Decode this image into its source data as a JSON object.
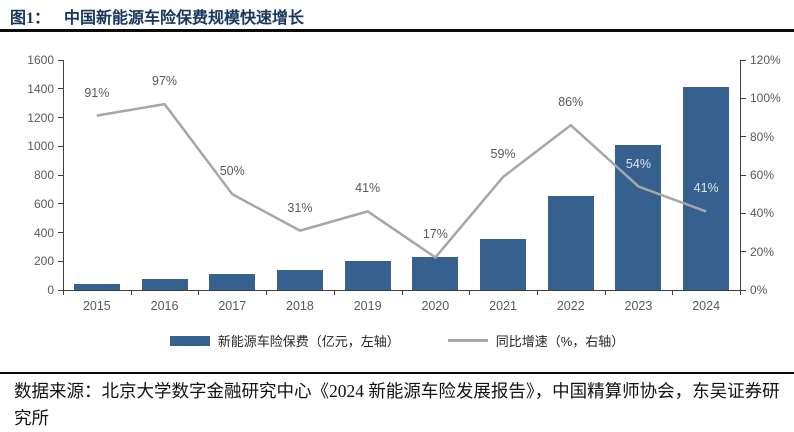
{
  "header": {
    "title_prefix": "图1：",
    "title": "中国新能源车险保费规模快速增长"
  },
  "chart_data": {
    "type": "combo_bar_line",
    "categories": [
      "2015",
      "2016",
      "2017",
      "2018",
      "2019",
      "2020",
      "2021",
      "2022",
      "2023",
      "2024"
    ],
    "series": [
      {
        "name": "新能源车险保费（亿元，左轴）",
        "type": "bar",
        "axis": "left",
        "values": [
          40,
          75,
          110,
          140,
          200,
          230,
          355,
          655,
          1010,
          1410
        ]
      },
      {
        "name": "同比增速（%，右轴）",
        "type": "line",
        "axis": "right",
        "values": [
          91,
          97,
          50,
          31,
          41,
          17,
          59,
          86,
          54,
          41
        ],
        "point_labels": [
          "91%",
          "97%",
          "50%",
          "31%",
          "41%",
          "17%",
          "59%",
          "86%",
          "54%",
          "41%"
        ]
      }
    ],
    "left_axis": {
      "min": 0,
      "max": 1600,
      "step": 200,
      "tick_labels": [
        "0",
        "200",
        "400",
        "600",
        "800",
        "1000",
        "1200",
        "1400",
        "1600"
      ]
    },
    "right_axis": {
      "min": 0,
      "max": 120,
      "step": 20,
      "tick_labels": [
        "0%",
        "20%",
        "40%",
        "60%",
        "80%",
        "100%",
        "120%"
      ]
    },
    "grid": "off",
    "legend_position": "bottom",
    "colors": {
      "bar": "#36618E",
      "line": "#A6A6A6",
      "point_label": "#595959",
      "point_label_on_bar": "#DCE6F2",
      "title": "#17365D"
    }
  },
  "legend": {
    "items": [
      {
        "label": "新能源车险保费（亿元，左轴）",
        "swatch": "bar"
      },
      {
        "label": "同比增速（%，右轴）",
        "swatch": "line"
      }
    ]
  },
  "source": {
    "text": "数据来源：北京大学数字金融研究中心《2024 新能源车险发展报告》，中国精算师协会，东吴证券研究所"
  }
}
